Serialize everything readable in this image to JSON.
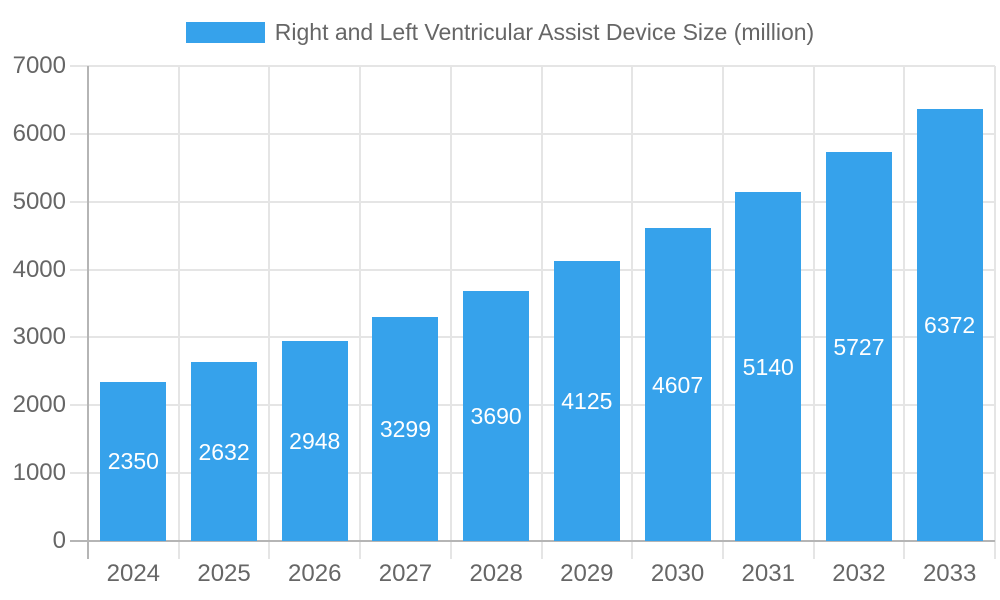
{
  "chart_data": {
    "type": "bar",
    "title": "Right and Left Ventricular Assist Device Size (million)",
    "categories": [
      "2024",
      "2025",
      "2026",
      "2027",
      "2028",
      "2029",
      "2030",
      "2031",
      "2032",
      "2033"
    ],
    "series": [
      {
        "name": "Right and Left Ventricular Assist Device Size (million)",
        "values": [
          2350,
          2632,
          2948,
          3299,
          3690,
          4125,
          4607,
          5140,
          5727,
          6372
        ]
      }
    ],
    "bar_labels": [
      "2350",
      "2632",
      "2948",
      "3299",
      "3690",
      "4125",
      "4607",
      "5140",
      "5727",
      "6372"
    ],
    "xlabel": "",
    "ylabel": "",
    "ylim": [
      0,
      7000
    ],
    "ytick_step": 1000,
    "ytick_labels": [
      "0",
      "1000",
      "2000",
      "3000",
      "4000",
      "5000",
      "6000",
      "7000"
    ],
    "grid": true,
    "legend_position": "top",
    "colors": {
      "bar": "#36A2EB",
      "bar_label": "#ffffff",
      "axis_text": "#666666",
      "gridline": "#e5e5e5",
      "axis_line": "#b5b5b5",
      "background": "#ffffff"
    }
  }
}
